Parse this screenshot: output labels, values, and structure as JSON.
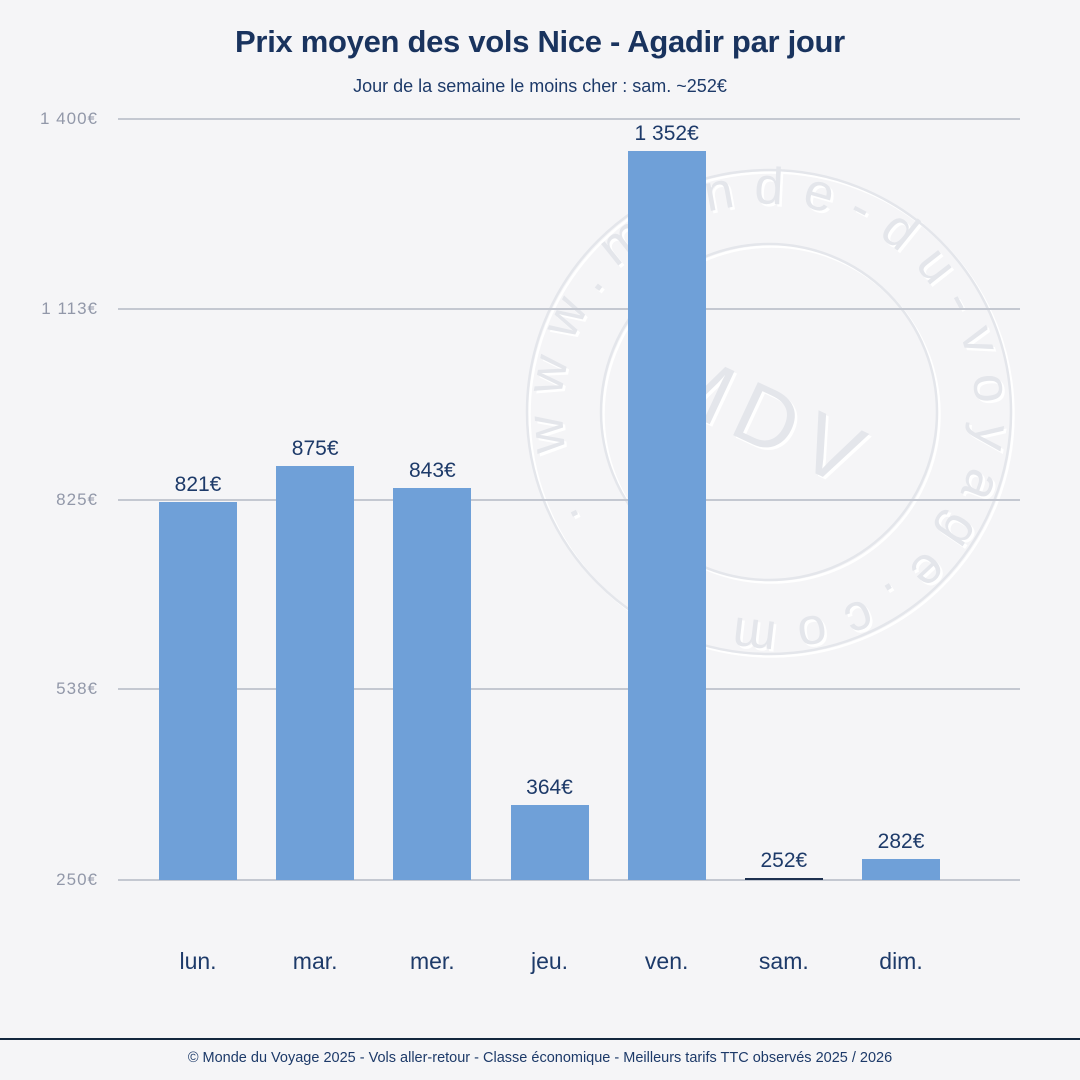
{
  "header": {
    "title": "Prix moyen des vols Nice - Agadir par jour",
    "subtitle": "Jour de la semaine le moins cher : sam. ~252€"
  },
  "chart_data": {
    "type": "bar",
    "title": "Prix moyen des vols Nice - Agadir par jour",
    "subtitle": "Jour de la semaine le moins cher : sam. ~252€",
    "categories": [
      "lun.",
      "mar.",
      "mer.",
      "jeu.",
      "ven.",
      "sam.",
      "dim."
    ],
    "values": [
      821,
      875,
      843,
      364,
      1352,
      252,
      282
    ],
    "value_labels": [
      "821€",
      "875€",
      "843€",
      "364€",
      "1 352€",
      "252€",
      "282€"
    ],
    "y_tick_labels": [
      "1 400€",
      "1 113€",
      "825€",
      "538€",
      "250€"
    ],
    "y_tick_values": [
      1400,
      1113,
      825,
      538,
      250
    ],
    "ylim": [
      250,
      1400
    ],
    "xlabel": "",
    "ylabel": "",
    "grid": true,
    "legend": "none",
    "colors": {
      "bar": "#6fa0d8",
      "bar_minimum": "#1e3150",
      "navy_text": "#1d3a69",
      "axis_text": "#9298a9",
      "gridline": "#c4c8d1",
      "background": "#f5f5f7"
    }
  },
  "watermark": {
    "ring_text": "· www.monde-du-voyage.com",
    "center_text": "MDV"
  },
  "footer": {
    "text": "© Monde du Voyage 2025 - Vols aller-retour - Classe économique - Meilleurs tarifs TTC observés 2025 / 2026"
  }
}
